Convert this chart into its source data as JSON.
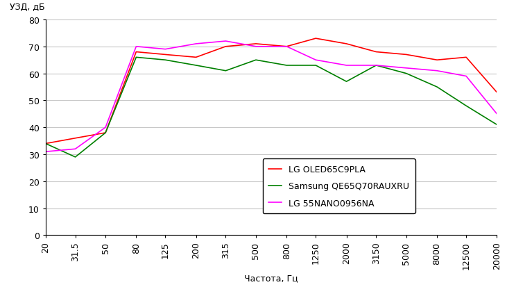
{
  "title_y": "УЗД, дБ",
  "title_x": "Частота, Гц",
  "x_ticks": [
    20,
    31.5,
    50,
    80,
    125,
    200,
    315,
    500,
    800,
    1250,
    2000,
    3150,
    5000,
    8000,
    12500,
    20000
  ],
  "x_tick_labels": [
    "20",
    "31.5",
    "50",
    "80",
    "125",
    "200",
    "315",
    "500",
    "800",
    "1250",
    "2000",
    "3150",
    "5000",
    "8000",
    "12500",
    "20000"
  ],
  "ylim": [
    0,
    80
  ],
  "yticks": [
    0,
    10,
    20,
    30,
    40,
    50,
    60,
    70,
    80
  ],
  "series": [
    {
      "label": "LG OLED65C9PLA",
      "color": "#ff0000",
      "x": [
        20,
        31.5,
        50,
        80,
        125,
        200,
        315,
        500,
        800,
        1250,
        2000,
        3150,
        5000,
        8000,
        12500,
        20000
      ],
      "y": [
        34,
        36,
        38,
        68,
        67,
        66,
        70,
        71,
        70,
        73,
        71,
        68,
        67,
        65,
        66,
        53
      ]
    },
    {
      "label": "Samsung QE65Q70RAUXRU",
      "color": "#008000",
      "x": [
        20,
        31.5,
        50,
        80,
        125,
        200,
        315,
        500,
        800,
        1250,
        2000,
        3150,
        5000,
        8000,
        12500,
        20000
      ],
      "y": [
        34,
        29,
        38,
        66,
        65,
        63,
        61,
        65,
        63,
        63,
        57,
        63,
        60,
        55,
        48,
        41
      ]
    },
    {
      "label": "LG 55NANO0956NA",
      "color": "#ff00ff",
      "x": [
        20,
        31.5,
        50,
        80,
        125,
        200,
        315,
        500,
        800,
        1250,
        2000,
        3150,
        5000,
        8000,
        12500,
        20000
      ],
      "y": [
        31,
        32,
        40,
        70,
        69,
        71,
        72,
        70,
        70,
        65,
        63,
        63,
        62,
        61,
        59,
        45
      ]
    }
  ],
  "bg_color": "#ffffff",
  "grid_color": "#c8c8c8",
  "font_size": 9,
  "line_width": 1.2
}
